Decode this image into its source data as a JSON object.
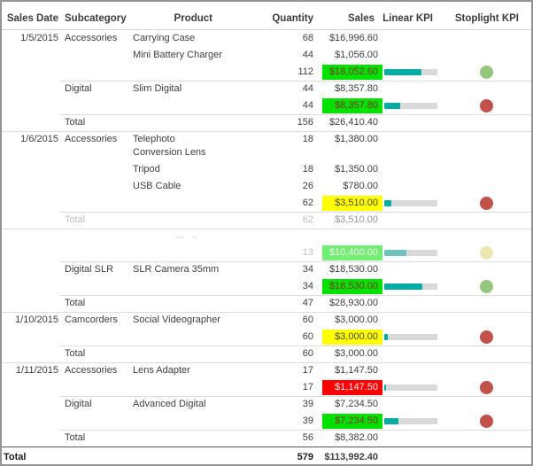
{
  "chart_data": {
    "type": "table",
    "columns": [
      "Sales Date",
      "Subcategory",
      "Product",
      "Quantity",
      "Sales",
      "Linear KPI",
      "Stoplight KPI"
    ],
    "kpi_colors": {
      "green": "#00e100",
      "yellow": "#ffff00",
      "red": "#fe0000",
      "bar_teal": "#00aca4",
      "bar_track": "#d9d9d9",
      "light_green": "#94c67e",
      "light_red": "#c2504b",
      "light_yellow": "#ddd67e"
    },
    "rows": [
      {
        "kind": "detail",
        "date": "1/5/2015",
        "subcategory": "Accessories",
        "product": "Carrying Case",
        "quantity": "68",
        "sales": "$16,996.60"
      },
      {
        "kind": "detail",
        "product": "Mini Battery Charger",
        "quantity": "44",
        "sales": "$1,056.00"
      },
      {
        "kind": "kpi",
        "quantity": "112",
        "sales": "$18,052.60",
        "highlight": "green",
        "bar_pct": 70,
        "light": "green"
      },
      {
        "kind": "detail",
        "subcategory": "Digital",
        "product": "Slim Digital",
        "quantity": "44",
        "sales": "$8,357.80",
        "border": "sub"
      },
      {
        "kind": "kpi",
        "quantity": "44",
        "sales": "$8,357.80",
        "highlight": "green",
        "bar_pct": 30,
        "light": "red"
      },
      {
        "kind": "total",
        "label": "Total",
        "quantity": "156",
        "sales": "$26,410.40",
        "border": "sub"
      },
      {
        "kind": "detail",
        "date": "1/6/2015",
        "subcategory": "Accessories",
        "product": "Telephoto Conversion Lens",
        "quantity": "18",
        "sales": "$1,380.00",
        "border": "date",
        "tall": true
      },
      {
        "kind": "detail",
        "product": "Tripod",
        "quantity": "18",
        "sales": "$1,350.00"
      },
      {
        "kind": "detail",
        "product": "USB Cable",
        "quantity": "26",
        "sales": "$780.00"
      },
      {
        "kind": "kpi",
        "quantity": "62",
        "sales": "$3,510.00",
        "highlight": "yellow",
        "bar_pct": 13,
        "light": "red"
      },
      {
        "kind": "total",
        "label": "Total",
        "quantity": "62",
        "sales": "$3,510.00",
        "border": "sub",
        "faded": true
      },
      {
        "kind": "gap",
        "border": "date"
      },
      {
        "kind": "kpi",
        "quantity": "13",
        "sales": "$10,400.00",
        "highlight": "green",
        "bar_pct": 42,
        "light": "yellow",
        "faded": true
      },
      {
        "kind": "detail",
        "subcategory": "Digital SLR",
        "product": "SLR Camera 35mm",
        "quantity": "34",
        "sales": "$18,530.00",
        "border": "sub"
      },
      {
        "kind": "kpi",
        "quantity": "34",
        "sales": "$18,530.00",
        "highlight": "green",
        "bar_pct": 72,
        "light": "green"
      },
      {
        "kind": "total",
        "label": "Total",
        "quantity": "47",
        "sales": "$28,930.00",
        "border": "sub"
      },
      {
        "kind": "detail",
        "date": "1/10/2015",
        "subcategory": "Camcorders",
        "product": "Social Videographer",
        "quantity": "60",
        "sales": "$3,000.00",
        "border": "date"
      },
      {
        "kind": "kpi",
        "quantity": "60",
        "sales": "$3,000.00",
        "highlight": "yellow",
        "bar_pct": 7,
        "light": "red"
      },
      {
        "kind": "total",
        "label": "Total",
        "quantity": "60",
        "sales": "$3,000.00",
        "border": "sub"
      },
      {
        "kind": "detail",
        "date": "1/11/2015",
        "subcategory": "Accessories",
        "product": "Lens Adapter",
        "quantity": "17",
        "sales": "$1,147.50",
        "border": "date"
      },
      {
        "kind": "kpi",
        "quantity": "17",
        "sales": "$1,147.50",
        "highlight": "red",
        "bar_pct": 3,
        "light": "red"
      },
      {
        "kind": "detail",
        "subcategory": "Digital",
        "product": "Advanced Digital",
        "quantity": "39",
        "sales": "$7,234.50",
        "border": "sub"
      },
      {
        "kind": "kpi",
        "quantity": "39",
        "sales": "$7,234.50",
        "highlight": "green",
        "bar_pct": 26,
        "light": "red"
      },
      {
        "kind": "total",
        "label": "Total",
        "quantity": "56",
        "sales": "$8,382.00",
        "border": "sub"
      },
      {
        "kind": "grand",
        "label": "Total",
        "quantity": "579",
        "sales": "$113,992.40",
        "border": "grand"
      }
    ]
  }
}
